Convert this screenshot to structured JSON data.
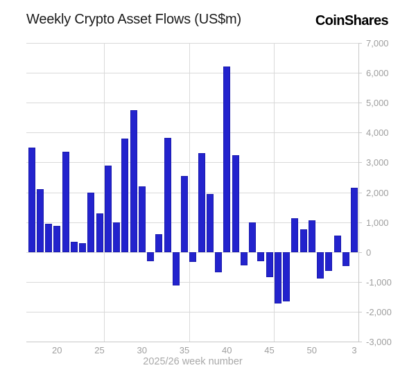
{
  "header": {
    "title": "Weekly Crypto Asset Flows (US$m)",
    "brand": "CoinShares"
  },
  "chart_data": {
    "type": "bar",
    "title": "Weekly Crypto Asset Flows (US$m)",
    "xlabel": "2025/26 week number",
    "ylabel": "",
    "ylim": [
      -3000,
      7000
    ],
    "ytick_step": 1000,
    "ytick_labels": [
      "7,000",
      "6,000",
      "5,000",
      "4,000",
      "3,000",
      "2,000",
      "1,000",
      "0",
      "-1,000",
      "-2,000",
      "-3,000"
    ],
    "categories": [
      "17",
      "18",
      "19",
      "20",
      "21",
      "22",
      "23",
      "24",
      "25",
      "26",
      "27",
      "28",
      "29",
      "30",
      "31",
      "32",
      "33",
      "34",
      "35",
      "36",
      "37",
      "38",
      "39",
      "40",
      "41",
      "42",
      "43",
      "44",
      "45",
      "46",
      "47",
      "48",
      "49",
      "50",
      "51",
      "52",
      "1",
      "2",
      "3"
    ],
    "values": [
      3500,
      2100,
      950,
      870,
      3350,
      330,
      290,
      2000,
      1300,
      2900,
      1000,
      3800,
      4750,
      2200,
      -320,
      600,
      3830,
      -1130,
      2540,
      -330,
      3320,
      1940,
      -670,
      6200,
      3250,
      -450,
      1000,
      -310,
      -850,
      -1730,
      -1650,
      1120,
      760,
      1050,
      -900,
      -630,
      560,
      -460,
      2150
    ],
    "x_ticks": [
      {
        "label": "20",
        "index": 3
      },
      {
        "label": "25",
        "index": 8
      },
      {
        "label": "30",
        "index": 13
      },
      {
        "label": "35",
        "index": 18
      },
      {
        "label": "40",
        "index": 23
      },
      {
        "label": "45",
        "index": 28
      },
      {
        "label": "50",
        "index": 33
      },
      {
        "label": "3",
        "index": 38
      }
    ],
    "vertical_gridline_indices": [
      8.55,
      18.55,
      28.55
    ],
    "grid": true,
    "legend": false,
    "bar_color": "#2323cd",
    "bar_border_color": "#1a1aae",
    "gridline_color": "#d9d9d9",
    "label_color": "#9e9e9e"
  }
}
